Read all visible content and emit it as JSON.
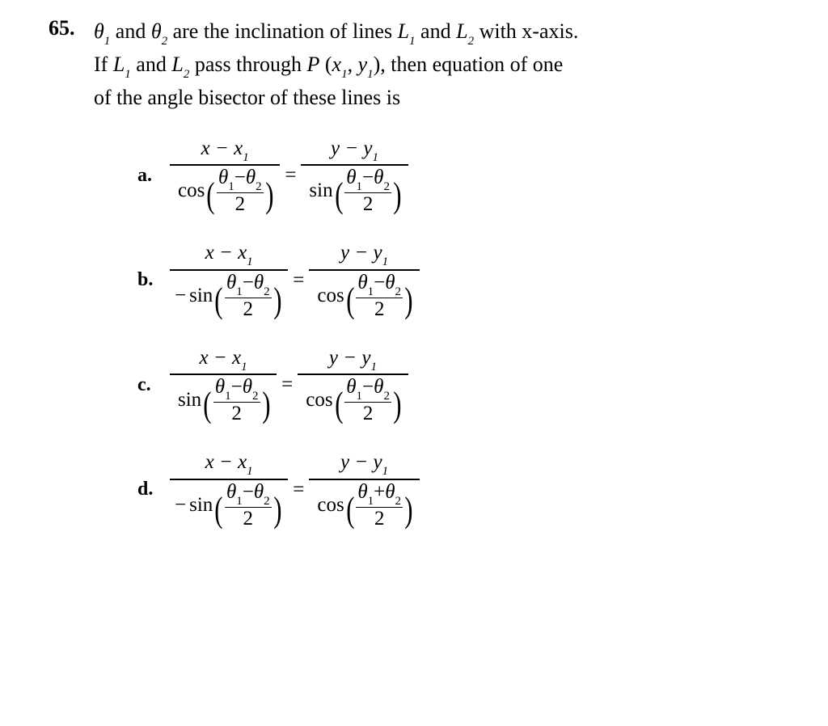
{
  "question": {
    "number": "65.",
    "line1_pre": "θ",
    "line1_s1": "1",
    "line1_mid1": " and ",
    "line1_th2": "θ",
    "line1_s2": "2",
    "line1_mid2": " are the inclination of lines ",
    "line1_L1": "L",
    "line1_L1s": "1",
    "line1_and": " and ",
    "line1_L2": "L",
    "line1_L2s": "2",
    "line1_end": " with x-axis.",
    "line2_pre": "If ",
    "line2_L1": "L",
    "line2_L1s": "1",
    "line2_and": " and ",
    "line2_L2": "L",
    "line2_L2s": "2",
    "line2_mid": " pass through ",
    "line2_P": "P",
    "line2_open": " (",
    "line2_x": "x",
    "line2_xs": "1",
    "line2_comma": ", ",
    "line2_y": "y",
    "line2_ys": "1",
    "line2_close": "), then equation of one",
    "line3": "of the angle bisector of these lines is"
  },
  "common": {
    "xmx": "x − x",
    "one": "1",
    "ymy": "y − y",
    "cos": "cos",
    "sin": "sin",
    "neg": "−",
    "minus": "−",
    "plus": "+",
    "theta": "θ",
    "two": "2",
    "eq": "="
  },
  "options": {
    "a": {
      "label": "a.",
      "lfn": "cos",
      "lsign": "",
      "rfn": "sin",
      "rsign": "",
      "lmid": "−",
      "rmid": "−"
    },
    "b": {
      "label": "b.",
      "lfn": "sin",
      "lsign": "− ",
      "rfn": "cos",
      "rsign": "",
      "lmid": "−",
      "rmid": "−"
    },
    "c": {
      "label": "c.",
      "lfn": "sin",
      "lsign": "",
      "rfn": "cos",
      "rsign": "",
      "lmid": "−",
      "rmid": "−"
    },
    "d": {
      "label": "d.",
      "lfn": "sin",
      "lsign": "− ",
      "rfn": "cos",
      "rsign": "",
      "lmid": "−",
      "rmid": "+"
    }
  },
  "style": {
    "bg": "#ffffff",
    "fg": "#000000",
    "body_fontsize": 26,
    "option_fontsize": 25,
    "fontfamily": "Times New Roman"
  }
}
